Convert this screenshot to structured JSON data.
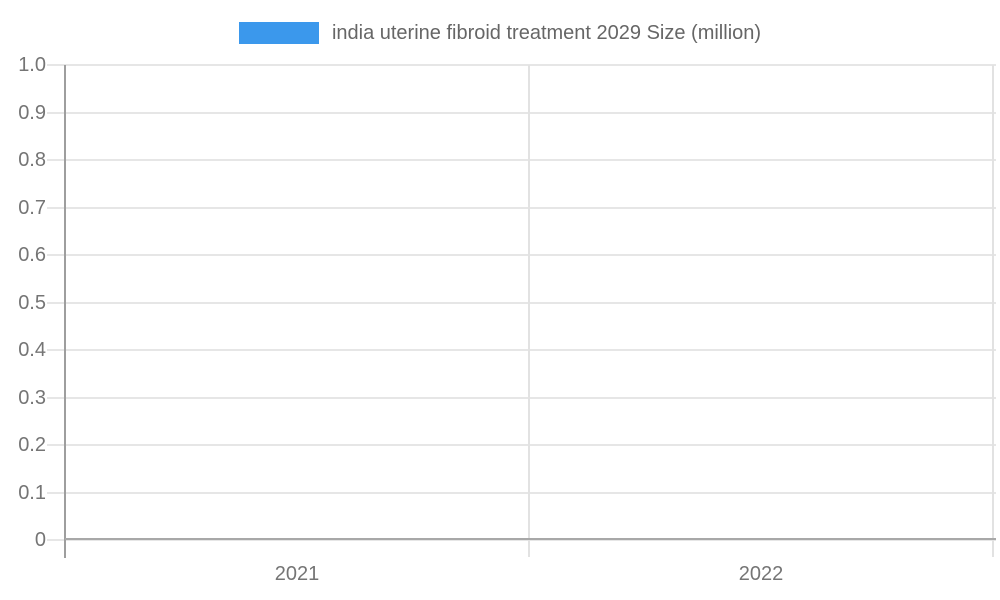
{
  "chart_data": {
    "type": "bar",
    "title": "",
    "legend": "india uterine fibroid treatment 2029 Size (million)",
    "legend_position": "top",
    "categories": [
      "2021",
      "2022"
    ],
    "series": [
      {
        "name": "india uterine fibroid treatment 2029 Size (million)",
        "values": [
          null,
          null
        ],
        "color": "#3b98ec"
      }
    ],
    "xlabel": "",
    "ylabel": "",
    "ylim": [
      0,
      1
    ],
    "yticks": [
      0,
      0.1,
      0.2,
      0.3,
      0.4,
      0.5,
      0.6,
      0.7,
      0.8,
      0.9,
      1
    ],
    "ytick_labels": [
      "0",
      "0.1",
      "0.2",
      "0.3",
      "0.4",
      "0.5",
      "0.6",
      "0.7",
      "0.8",
      "0.9",
      "1.0"
    ],
    "grid": true
  },
  "colors": {
    "accent": "#3b98ec",
    "legend_text": "#666666",
    "tick_text": "#757575",
    "gridline": "#e6e6e6",
    "axis_line": "#9e9e9e"
  }
}
